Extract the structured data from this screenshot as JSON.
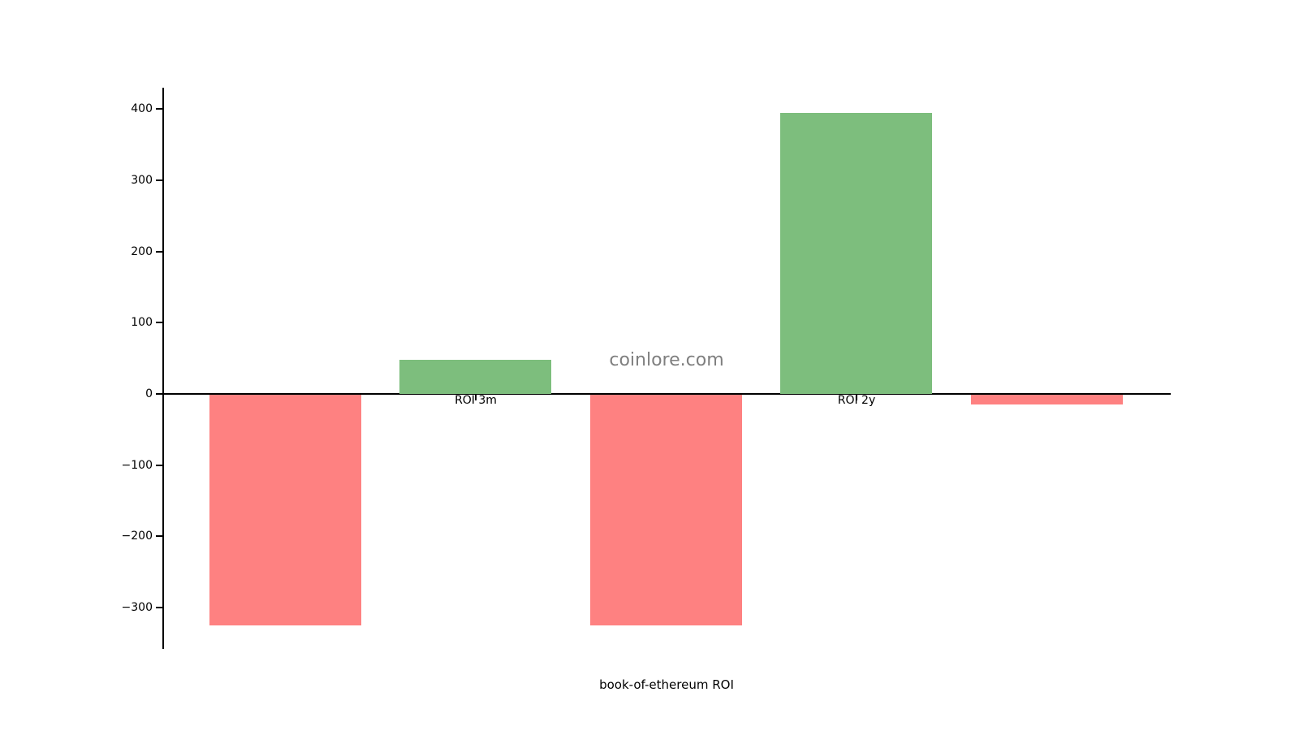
{
  "chart_data": {
    "type": "bar",
    "title": "",
    "xlabel": "book-of-ethereum ROI",
    "ylabel": "",
    "categories": [
      "",
      "ROI 3m",
      "",
      "ROI 2y",
      ""
    ],
    "values": [
      -325,
      48,
      -325,
      395,
      -15
    ],
    "yticks": [
      400,
      300,
      200,
      100,
      0,
      -100,
      -200,
      -300
    ],
    "ytick_labels": [
      "400",
      "300",
      "200",
      "100",
      "0",
      "−100",
      "−200",
      "−300"
    ],
    "ylim": [
      -358,
      430
    ],
    "grid": false,
    "legend": null,
    "positive_color": "#7dbe7d",
    "negative_color": "#fe8181",
    "axis_color": "#000000",
    "watermark": "coinlore.com",
    "watermark_color": "#7f7f7f"
  }
}
